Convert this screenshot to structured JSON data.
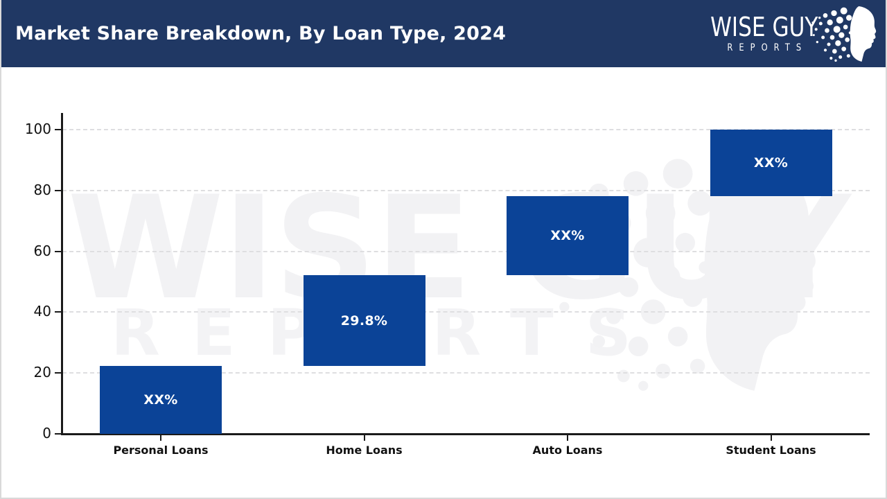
{
  "header": {
    "title": "Market Share Breakdown, By Loan Type, 2024",
    "logo": {
      "line1": "WISE GUY",
      "line2": "REPORTS"
    }
  },
  "watermark": {
    "line1": "WISE GUY",
    "line2": "REPORTS"
  },
  "colors": {
    "header_bg": "#203864",
    "axis": "#1a1a1a",
    "grid": "#dedee0",
    "watermark_gray": "#f2f2f4",
    "title_text": "#ffffff"
  },
  "chart_data": {
    "type": "bar",
    "subtype": "waterfall",
    "title": "Market Share Breakdown, By Loan Type, 2024",
    "categories": [
      "Personal Loans",
      "Home Loans",
      "Auto Loans",
      "Student Loans"
    ],
    "segments": [
      {
        "start": 0,
        "end": 22.3,
        "value_label": "XX%",
        "approx_value": 22.3
      },
      {
        "start": 22.3,
        "end": 52.1,
        "value_label": "29.8%",
        "approx_value": 29.8
      },
      {
        "start": 52.1,
        "end": 78.2,
        "value_label": "XX%",
        "approx_value": 26.1
      },
      {
        "start": 78.2,
        "end": 100,
        "value_label": "XX%",
        "approx_value": 21.8
      }
    ],
    "xlabel": "",
    "ylabel": "",
    "ylim": [
      0,
      100
    ],
    "yticks": [
      0,
      20,
      40,
      60,
      80,
      100
    ],
    "grid": "horizontal-dashed",
    "legend": null,
    "bar_color": "#0b4397",
    "bar_label_color": "#ffffff"
  }
}
